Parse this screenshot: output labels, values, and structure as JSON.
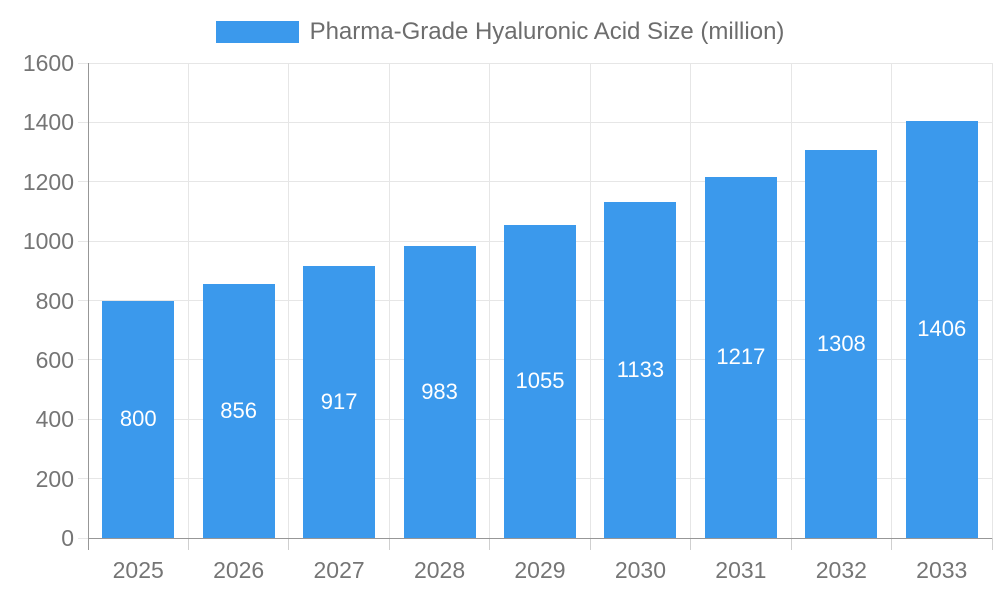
{
  "chart_data": {
    "type": "bar",
    "title": "Pharma-Grade Hyaluronic Acid Size (million)",
    "categories": [
      "2025",
      "2026",
      "2027",
      "2028",
      "2029",
      "2030",
      "2031",
      "2032",
      "2033"
    ],
    "values": [
      800,
      856,
      917,
      983,
      1055,
      1133,
      1217,
      1308,
      1406
    ],
    "xlabel": "",
    "ylabel": "",
    "ylim": [
      0,
      1600
    ],
    "ytick_step": 200,
    "grid": "on",
    "legend_position": "top-center",
    "bar_color": "#3b99ec",
    "bar_label_color": "#ffffff",
    "grid_color": "#e6e6e6",
    "axis_line_color": "#979797",
    "tick_color": "#cfcfcf",
    "axis_text_color": "#757575",
    "legend_text_color": "#6d6d6d"
  }
}
